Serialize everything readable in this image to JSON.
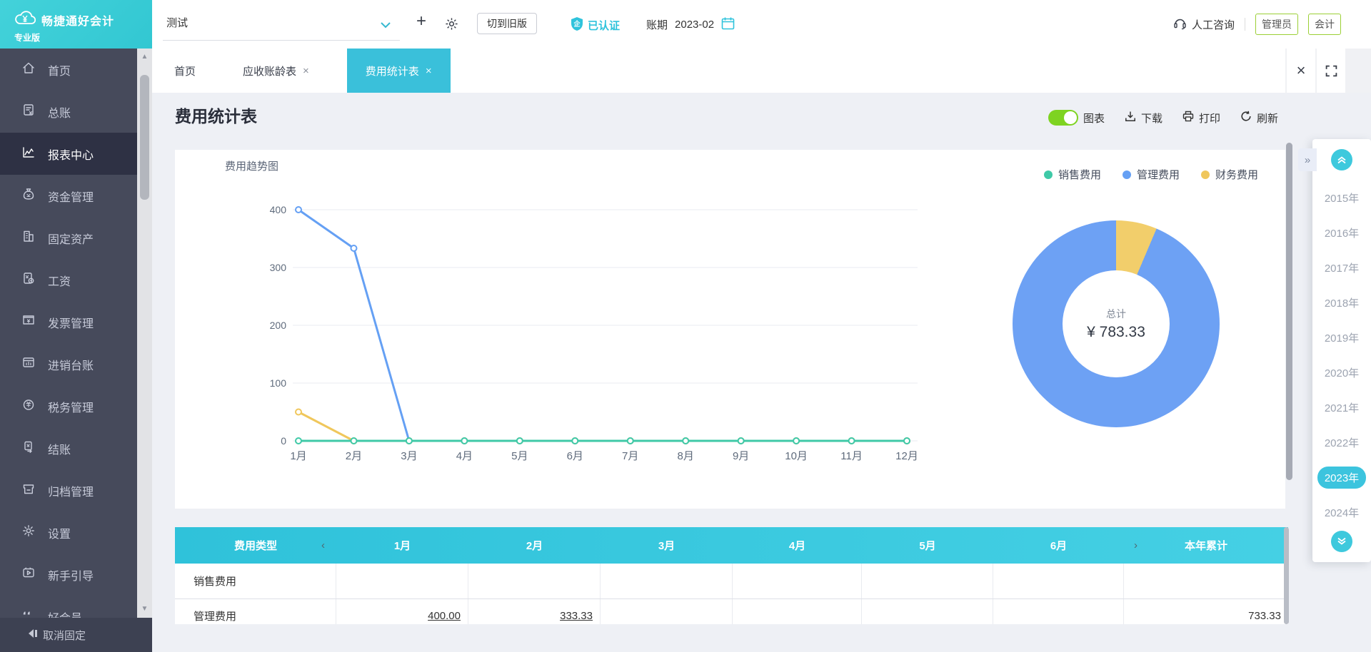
{
  "colors": {
    "brand_teal": "#3ac0da",
    "logo_teal": "#3cccd5",
    "sidebar_bg": "#464a5b",
    "sidebar_active_bg": "#2e3144",
    "toggle_green": "#7ed321",
    "badge_green": "#9bcf35",
    "table_header_teal": "#35c8de",
    "series_sales": "#3fc9a7",
    "series_admin": "#65a0f4",
    "series_finance": "#f0c75c",
    "pie_admin": "#6da1f4",
    "pie_finance": "#f2ce6b"
  },
  "brand": {
    "name": "畅捷通好会计",
    "edition": "专业版"
  },
  "header": {
    "workspace": "测试",
    "plus": "+",
    "switch_old_label": "切到旧版",
    "certified_label": "已认证",
    "period_label": "账期",
    "period_value": "2023-02",
    "support_label": "人工咨询",
    "roles": [
      "管理员",
      "会计"
    ]
  },
  "sidebar": {
    "items": [
      {
        "label": "首页",
        "icon": "home-icon",
        "active": false
      },
      {
        "label": "总账",
        "icon": "ledger-icon",
        "active": false
      },
      {
        "label": "报表中心",
        "icon": "report-center-icon",
        "active": true
      },
      {
        "label": "资金管理",
        "icon": "funds-icon",
        "active": false
      },
      {
        "label": "固定资产",
        "icon": "fixed-assets-icon",
        "active": false
      },
      {
        "label": "工资",
        "icon": "payroll-icon",
        "active": false
      },
      {
        "label": "发票管理",
        "icon": "invoice-icon",
        "active": false
      },
      {
        "label": "进销台账",
        "icon": "trade-ledger-icon",
        "active": false
      },
      {
        "label": "税务管理",
        "icon": "tax-icon",
        "active": false
      },
      {
        "label": "结账",
        "icon": "closing-icon",
        "active": false
      },
      {
        "label": "归档管理",
        "icon": "archive-icon",
        "active": false
      },
      {
        "label": "设置",
        "icon": "settings-icon",
        "active": false
      },
      {
        "label": "新手引导",
        "icon": "guide-icon",
        "active": false
      },
      {
        "label": "好会员",
        "icon": "membership-icon",
        "active": false,
        "clipped": true
      }
    ],
    "unpin_label": "取消固定"
  },
  "tabs": [
    {
      "label": "首页",
      "closable": false,
      "active": false
    },
    {
      "label": "应收账龄表",
      "closable": true,
      "active": false
    },
    {
      "label": "费用统计表",
      "closable": true,
      "active": true
    }
  ],
  "page": {
    "title": "费用统计表",
    "toolbar": {
      "chart_toggle_label": "图表",
      "toggle_on": true,
      "download_label": "下载",
      "print_label": "打印",
      "refresh_label": "刷新"
    }
  },
  "chart_data": [
    {
      "type": "line",
      "title": "费用趋势图",
      "x": [
        "1月",
        "2月",
        "3月",
        "4月",
        "5月",
        "6月",
        "7月",
        "8月",
        "9月",
        "10月",
        "11月",
        "12月"
      ],
      "series": [
        {
          "name": "销售费用",
          "color": "#3fc9a7",
          "values": [
            0,
            0,
            0,
            0,
            0,
            0,
            0,
            0,
            0,
            0,
            0,
            0
          ]
        },
        {
          "name": "管理费用",
          "color": "#65a0f4",
          "values": [
            400,
            333.33,
            0,
            0,
            0,
            0,
            0,
            0,
            0,
            0,
            0,
            0
          ]
        },
        {
          "name": "财务费用",
          "color": "#f0c75c",
          "values": [
            50,
            0,
            0,
            0,
            0,
            0,
            0,
            0,
            0,
            0,
            0,
            0
          ]
        }
      ],
      "ylim": [
        0,
        400
      ],
      "yticks": [
        0,
        100,
        200,
        300,
        400
      ],
      "grid": true,
      "legend_position": "top-right"
    },
    {
      "type": "pie",
      "center_label": "总计",
      "center_value": "¥ 783.33",
      "slices": [
        {
          "name": "财务费用",
          "value": 50,
          "color": "#f2ce6b"
        },
        {
          "name": "管理费用",
          "value": 733.33,
          "color": "#6da1f4"
        },
        {
          "name": "销售费用",
          "value": 0,
          "color": "#3fc9a7"
        }
      ]
    }
  ],
  "table": {
    "columns": [
      "费用类型",
      "1月",
      "2月",
      "3月",
      "4月",
      "5月",
      "6月",
      "本年累计"
    ],
    "rows": [
      {
        "name": "销售费用",
        "cells": [
          {
            "t": "",
            "link": false
          },
          {
            "t": "",
            "link": false
          },
          {
            "t": "",
            "link": false
          },
          {
            "t": "",
            "link": false
          },
          {
            "t": "",
            "link": false
          },
          {
            "t": "",
            "link": false
          },
          {
            "t": "",
            "link": false
          }
        ]
      },
      {
        "name": "管理费用",
        "cells": [
          {
            "t": "400.00",
            "link": true
          },
          {
            "t": "333.33",
            "link": true
          },
          {
            "t": "",
            "link": false
          },
          {
            "t": "",
            "link": false
          },
          {
            "t": "",
            "link": false
          },
          {
            "t": "",
            "link": false
          },
          {
            "t": "733.33",
            "link": false
          }
        ]
      }
    ]
  },
  "year_panel": {
    "years": [
      "2015年",
      "2016年",
      "2017年",
      "2018年",
      "2019年",
      "2020年",
      "2021年",
      "2022年",
      "2023年",
      "2024年"
    ],
    "selected": "2023年"
  }
}
